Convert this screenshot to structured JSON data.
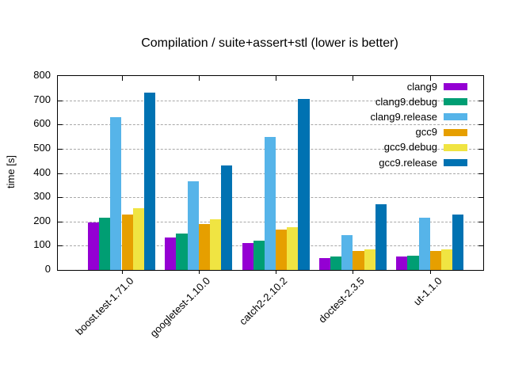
{
  "chart_data": {
    "type": "bar",
    "title": "Compilation / suite+assert+stl (lower is better)",
    "xlabel": "",
    "ylabel": "time [s]",
    "ylim": [
      0,
      800
    ],
    "ytick_step": 100,
    "grid": true,
    "legend_position": "top-right",
    "categories": [
      "boost.test-1.71.0",
      "googletest-1.10.0",
      "catch2-2.10.2",
      "doctest-2.3.5",
      "ut-1.1.0"
    ],
    "series": [
      {
        "name": "clang9",
        "color": "#9400d3",
        "values": [
          195,
          135,
          110,
          50,
          55
        ]
      },
      {
        "name": "clang9.debug",
        "color": "#009e73",
        "values": [
          215,
          150,
          120,
          55,
          58
        ]
      },
      {
        "name": "clang9.release",
        "color": "#56b4e9",
        "values": [
          630,
          365,
          550,
          145,
          215
        ]
      },
      {
        "name": "gcc9",
        "color": "#e69f00",
        "values": [
          230,
          190,
          165,
          80,
          78
        ]
      },
      {
        "name": "gcc9.debug",
        "color": "#f0e442",
        "values": [
          255,
          210,
          175,
          85,
          85
        ]
      },
      {
        "name": "gcc9.release",
        "color": "#0072b2",
        "values": [
          730,
          430,
          705,
          270,
          230
        ]
      }
    ],
    "axis_color": "#000000",
    "grid_color": "#a8a8a8",
    "background_color": "#ffffff"
  }
}
